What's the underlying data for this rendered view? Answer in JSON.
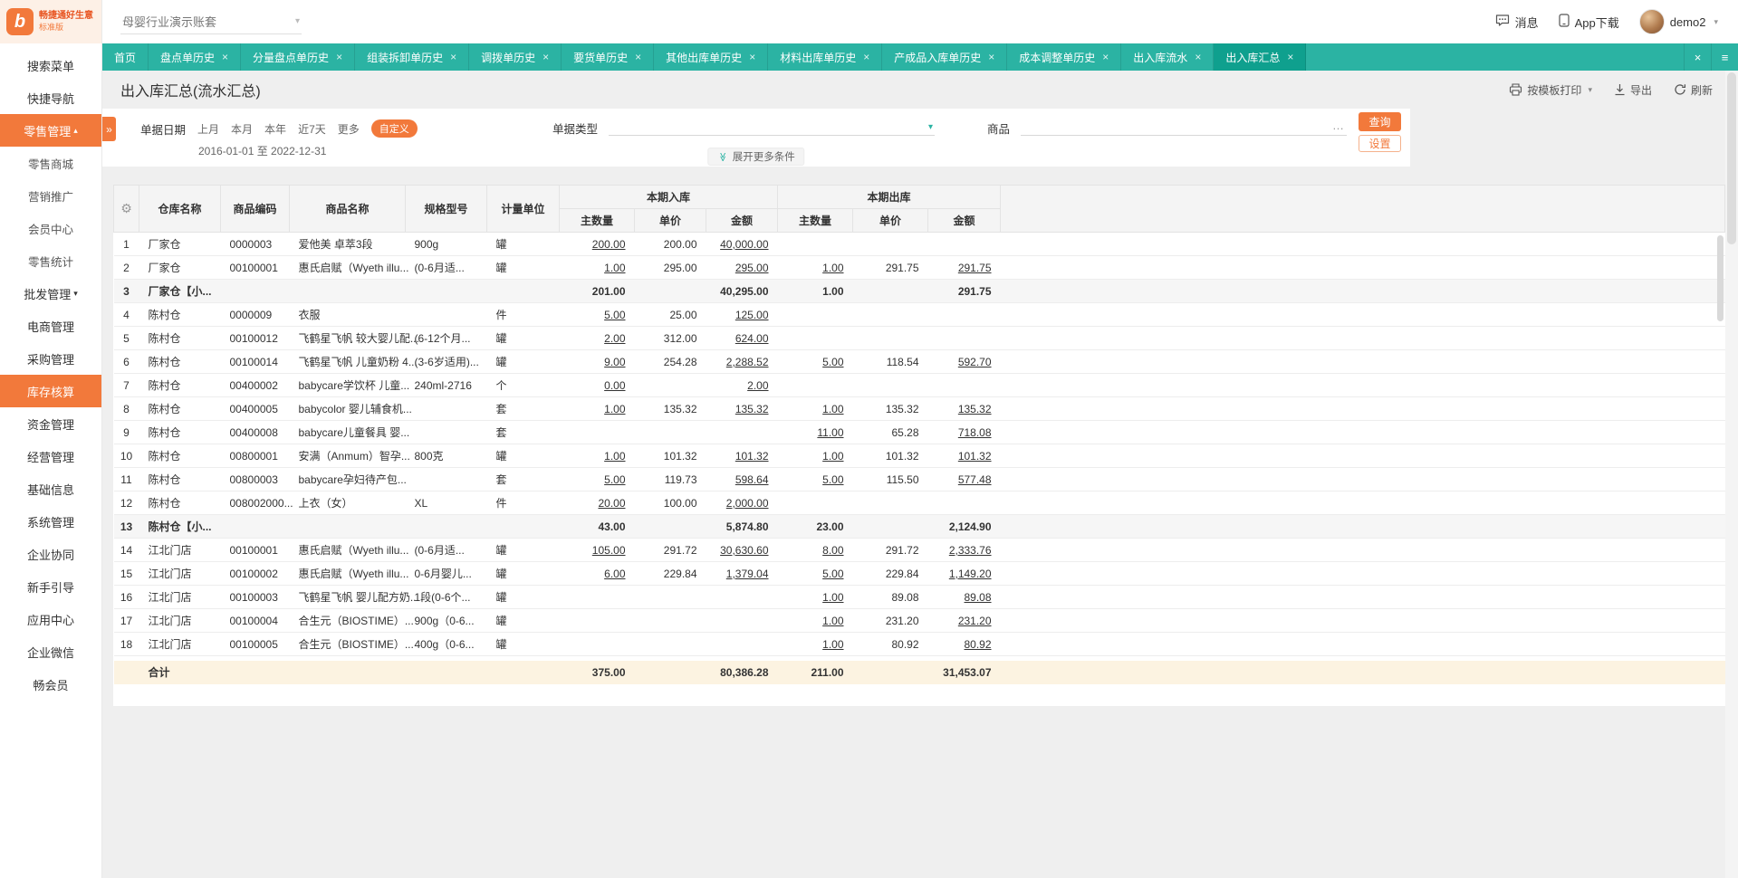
{
  "theme": {
    "accent": "#f2793b",
    "teal": "#2bb3a3",
    "teal_active": "#0fa08e",
    "total_bg": "#fcf3e1"
  },
  "icons": {
    "gear": "⚙",
    "close": "×",
    "menu": "≡",
    "chevron_down": "▾",
    "chevron_up": "▴",
    "collapse": "»",
    "double_chevron": "≫",
    "ellipsis": "…"
  },
  "app": {
    "logo_text": "畅捷通好生意",
    "logo_badge": "标准版",
    "logo_letter": "b"
  },
  "topbar": {
    "account": "母婴行业演示账套",
    "messages": "消息",
    "app_download": "App下载",
    "user": "demo2"
  },
  "sidebar": {
    "items": [
      {
        "label": "搜索菜单"
      },
      {
        "label": "快捷导航"
      },
      {
        "label": "零售管理",
        "selected": true,
        "arrow": "up",
        "children": [
          "零售商城",
          "营销推广",
          "会员中心",
          "零售统计"
        ]
      },
      {
        "label": "批发管理",
        "arrow": "down"
      },
      {
        "label": "电商管理"
      },
      {
        "label": "采购管理"
      },
      {
        "label": "库存核算",
        "selected": true
      },
      {
        "label": "资金管理"
      },
      {
        "label": "经营管理"
      },
      {
        "label": "基础信息"
      },
      {
        "label": "系统管理"
      },
      {
        "label": "企业协同"
      },
      {
        "label": "新手引导"
      },
      {
        "label": "应用中心"
      },
      {
        "label": "企业微信"
      },
      {
        "label": "畅会员"
      }
    ]
  },
  "tabs": {
    "items": [
      {
        "label": "首页",
        "closable": false
      },
      {
        "label": "盘点单历史",
        "closable": true
      },
      {
        "label": "分量盘点单历史",
        "closable": true
      },
      {
        "label": "组装拆卸单历史",
        "closable": true
      },
      {
        "label": "调拨单历史",
        "closable": true
      },
      {
        "label": "要货单历史",
        "closable": true
      },
      {
        "label": "其他出库单历史",
        "closable": true
      },
      {
        "label": "材料出库单历史",
        "closable": true
      },
      {
        "label": "产成品入库单历史",
        "closable": true
      },
      {
        "label": "成本调整单历史",
        "closable": true
      },
      {
        "label": "出入库流水",
        "closable": true
      },
      {
        "label": "出入库汇总",
        "closable": true,
        "active": true
      }
    ]
  },
  "page": {
    "title": "出入库汇总(流水汇总)",
    "actions": {
      "print": "按模板打印",
      "export": "导出",
      "refresh": "刷新"
    }
  },
  "filters": {
    "date_label": "单据日期",
    "date_options": [
      "上月",
      "本月",
      "本年",
      "近7天",
      "更多"
    ],
    "date_custom": "自定义",
    "date_range": "2016-01-01 至 2022-12-31",
    "type_label": "单据类型",
    "product_label": "商品",
    "query_button": "查询",
    "settings_button": "设置",
    "expand_more": "展开更多条件"
  },
  "table": {
    "headers": {
      "plain": [
        "仓库名称",
        "商品编码",
        "商品名称",
        "规格型号",
        "计量单位"
      ],
      "groups": [
        {
          "label": "本期入库",
          "children": [
            "主数量",
            "单价",
            "金额"
          ]
        },
        {
          "label": "本期出库",
          "children": [
            "主数量",
            "单价",
            "金额"
          ]
        }
      ]
    },
    "rows": [
      {
        "type": "data",
        "idx": "1",
        "wh": "厂家仓",
        "code": "0000003",
        "name": "爱他美 卓萃3段",
        "spec": "900g",
        "unit": "罐",
        "iq": "200.00",
        "ip": "200.00",
        "ia": "40,000.00",
        "oq": "",
        "op": "",
        "oa": ""
      },
      {
        "type": "data",
        "idx": "2",
        "wh": "厂家仓",
        "code": "00100001",
        "name": "惠氏启赋（Wyeth illu...",
        "spec": "(0-6月适...",
        "unit": "罐",
        "iq": "1.00",
        "ip": "295.00",
        "ia": "295.00",
        "oq": "1.00",
        "op": "291.75",
        "oa": "291.75"
      },
      {
        "type": "subtotal",
        "idx": "3",
        "wh": "厂家仓【小...",
        "code": "",
        "name": "",
        "spec": "",
        "unit": "",
        "iq": "201.00",
        "ip": "",
        "ia": "40,295.00",
        "oq": "1.00",
        "op": "",
        "oa": "291.75"
      },
      {
        "type": "data",
        "idx": "4",
        "wh": "陈村仓",
        "code": "0000009",
        "name": "衣服",
        "spec": "",
        "unit": "件",
        "iq": "5.00",
        "ip": "25.00",
        "ia": "125.00",
        "oq": "",
        "op": "",
        "oa": ""
      },
      {
        "type": "data",
        "idx": "5",
        "wh": "陈村仓",
        "code": "00100012",
        "name": "飞鹤星飞帆 较大婴儿配...",
        "spec": "(6-12个月...",
        "unit": "罐",
        "iq": "2.00",
        "ip": "312.00",
        "ia": "624.00",
        "oq": "",
        "op": "",
        "oa": ""
      },
      {
        "type": "data",
        "idx": "6",
        "wh": "陈村仓",
        "code": "00100014",
        "name": "飞鹤星飞帆 儿童奶粉 4...",
        "spec": "(3-6岁适用)...",
        "unit": "罐",
        "iq": "9.00",
        "ip": "254.28",
        "ia": "2,288.52",
        "oq": "5.00",
        "op": "118.54",
        "oa": "592.70"
      },
      {
        "type": "data",
        "idx": "7",
        "wh": "陈村仓",
        "code": "00400002",
        "name": "babycare学饮杯 儿童...",
        "spec": "240ml-2716",
        "unit": "个",
        "iq": "0.00",
        "ip": "",
        "ia": "2.00",
        "oq": "",
        "op": "",
        "oa": ""
      },
      {
        "type": "data",
        "idx": "8",
        "wh": "陈村仓",
        "code": "00400005",
        "name": "babycolor 婴儿辅食机...",
        "spec": "",
        "unit": "套",
        "iq": "1.00",
        "ip": "135.32",
        "ia": "135.32",
        "oq": "1.00",
        "op": "135.32",
        "oa": "135.32"
      },
      {
        "type": "data",
        "idx": "9",
        "wh": "陈村仓",
        "code": "00400008",
        "name": "babycare儿童餐具 婴...",
        "spec": "",
        "unit": "套",
        "iq": "",
        "ip": "",
        "ia": "",
        "oq": "11.00",
        "op": "65.28",
        "oa": "718.08"
      },
      {
        "type": "data",
        "idx": "10",
        "wh": "陈村仓",
        "code": "00800001",
        "name": "安满（Anmum）智孕...",
        "spec": "800克",
        "unit": "罐",
        "iq": "1.00",
        "ip": "101.32",
        "ia": "101.32",
        "oq": "1.00",
        "op": "101.32",
        "oa": "101.32"
      },
      {
        "type": "data",
        "idx": "11",
        "wh": "陈村仓",
        "code": "00800003",
        "name": "babycare孕妇待产包...",
        "spec": "",
        "unit": "套",
        "iq": "5.00",
        "ip": "119.73",
        "ia": "598.64",
        "oq": "5.00",
        "op": "115.50",
        "oa": "577.48"
      },
      {
        "type": "data",
        "idx": "12",
        "wh": "陈村仓",
        "code": "008002000...",
        "name": "上衣（女）",
        "spec": "XL",
        "unit": "件",
        "iq": "20.00",
        "ip": "100.00",
        "ia": "2,000.00",
        "oq": "",
        "op": "",
        "oa": ""
      },
      {
        "type": "subtotal",
        "idx": "13",
        "wh": "陈村仓【小...",
        "code": "",
        "name": "",
        "spec": "",
        "unit": "",
        "iq": "43.00",
        "ip": "",
        "ia": "5,874.80",
        "oq": "23.00",
        "op": "",
        "oa": "2,124.90"
      },
      {
        "type": "data",
        "idx": "14",
        "wh": "江北门店",
        "code": "00100001",
        "name": "惠氏启赋（Wyeth illu...",
        "spec": "(0-6月适...",
        "unit": "罐",
        "iq": "105.00",
        "ip": "291.72",
        "ia": "30,630.60",
        "oq": "8.00",
        "op": "291.72",
        "oa": "2,333.76"
      },
      {
        "type": "data",
        "idx": "15",
        "wh": "江北门店",
        "code": "00100002",
        "name": "惠氏启赋（Wyeth illu...",
        "spec": "0-6月婴儿...",
        "unit": "罐",
        "iq": "6.00",
        "ip": "229.84",
        "ia": "1,379.04",
        "oq": "5.00",
        "op": "229.84",
        "oa": "1,149.20"
      },
      {
        "type": "data",
        "idx": "16",
        "wh": "江北门店",
        "code": "00100003",
        "name": "飞鹤星飞帆 婴儿配方奶...",
        "spec": "1段(0-6个...",
        "unit": "罐",
        "iq": "",
        "ip": "",
        "ia": "",
        "oq": "1.00",
        "op": "89.08",
        "oa": "89.08"
      },
      {
        "type": "data",
        "idx": "17",
        "wh": "江北门店",
        "code": "00100004",
        "name": "合生元（BIOSTIME）...",
        "spec": "900g（0-6...",
        "unit": "罐",
        "iq": "",
        "ip": "",
        "ia": "",
        "oq": "1.00",
        "op": "231.20",
        "oa": "231.20"
      },
      {
        "type": "data",
        "idx": "18",
        "wh": "江北门店",
        "code": "00100005",
        "name": "合生元（BIOSTIME）...",
        "spec": "400g（0-6...",
        "unit": "罐",
        "iq": "",
        "ip": "",
        "ia": "",
        "oq": "1.00",
        "op": "80.92",
        "oa": "80.92"
      },
      {
        "type": "total",
        "idx": "",
        "wh": "合计",
        "code": "",
        "name": "",
        "spec": "",
        "unit": "",
        "iq": "375.00",
        "ip": "",
        "ia": "80,386.28",
        "oq": "211.00",
        "op": "",
        "oa": "31,453.07"
      }
    ]
  }
}
